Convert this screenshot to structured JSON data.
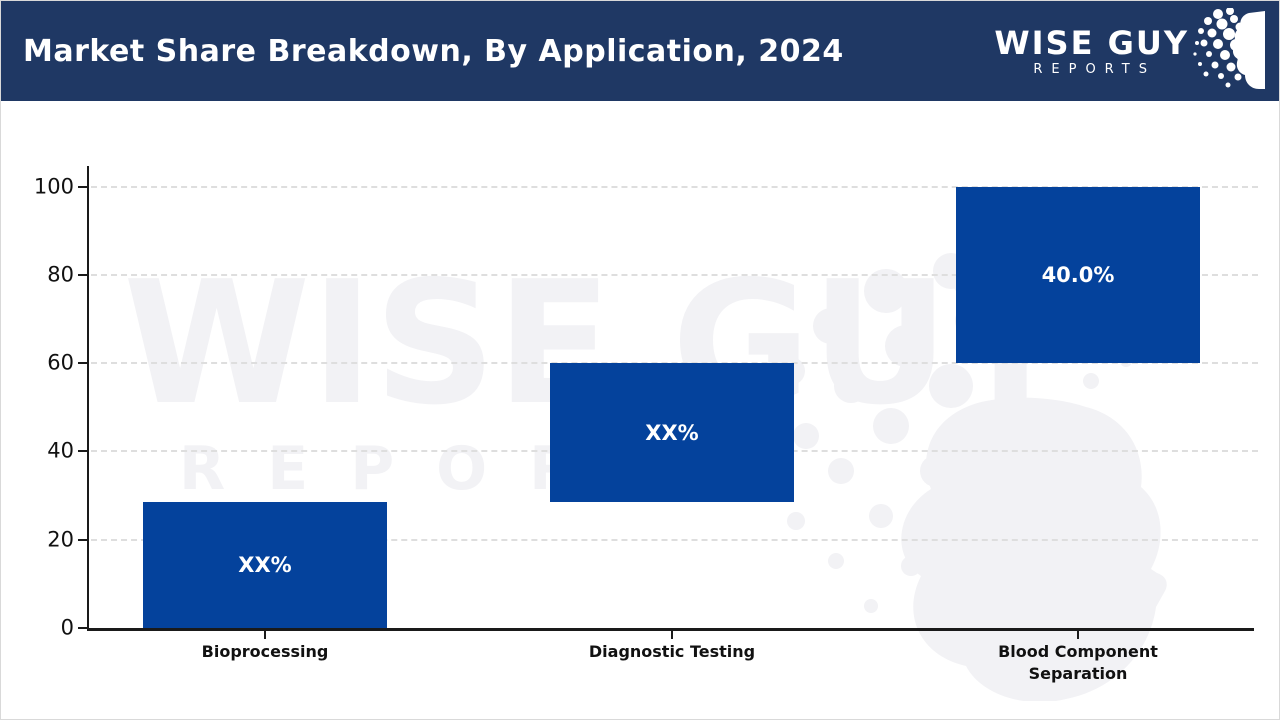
{
  "header": {
    "title": "Market Share Breakdown, By Application, 2024",
    "logo": {
      "wordmark": "WISE GUY",
      "subtitle": "REPORTS"
    }
  },
  "watermark": {
    "wordmark": "WISE GUY",
    "subtitle": "REPORTS"
  },
  "chart_data": {
    "type": "bar",
    "subtype": "floating-segment-waterfall",
    "title": "Market Share Breakdown, By Application, 2024",
    "categories": [
      "Bioprocessing",
      "Diagnostic Testing",
      "Blood Component Separation"
    ],
    "segments": [
      {
        "category": "Bioprocessing",
        "start": 0,
        "end": 28.5,
        "value_label": "XX%"
      },
      {
        "category": "Diagnostic Testing",
        "start": 28.5,
        "end": 60,
        "value_label": "XX%"
      },
      {
        "category": "Blood Component Separation",
        "start": 60,
        "end": 100,
        "value_label": "40.0%"
      }
    ],
    "xlabel": "",
    "ylabel": "",
    "ylim": [
      0,
      100
    ],
    "yticks": [
      0,
      20,
      40,
      60,
      80,
      100
    ],
    "grid": "horizontal-dashed",
    "legend": "none",
    "colors": {
      "bar": "#04429c",
      "bar_label": "#ffffff",
      "grid": "#dedede",
      "axis": "#1a1a1a",
      "header_bg": "#1f3864",
      "watermark": "#f2f2f5"
    }
  }
}
